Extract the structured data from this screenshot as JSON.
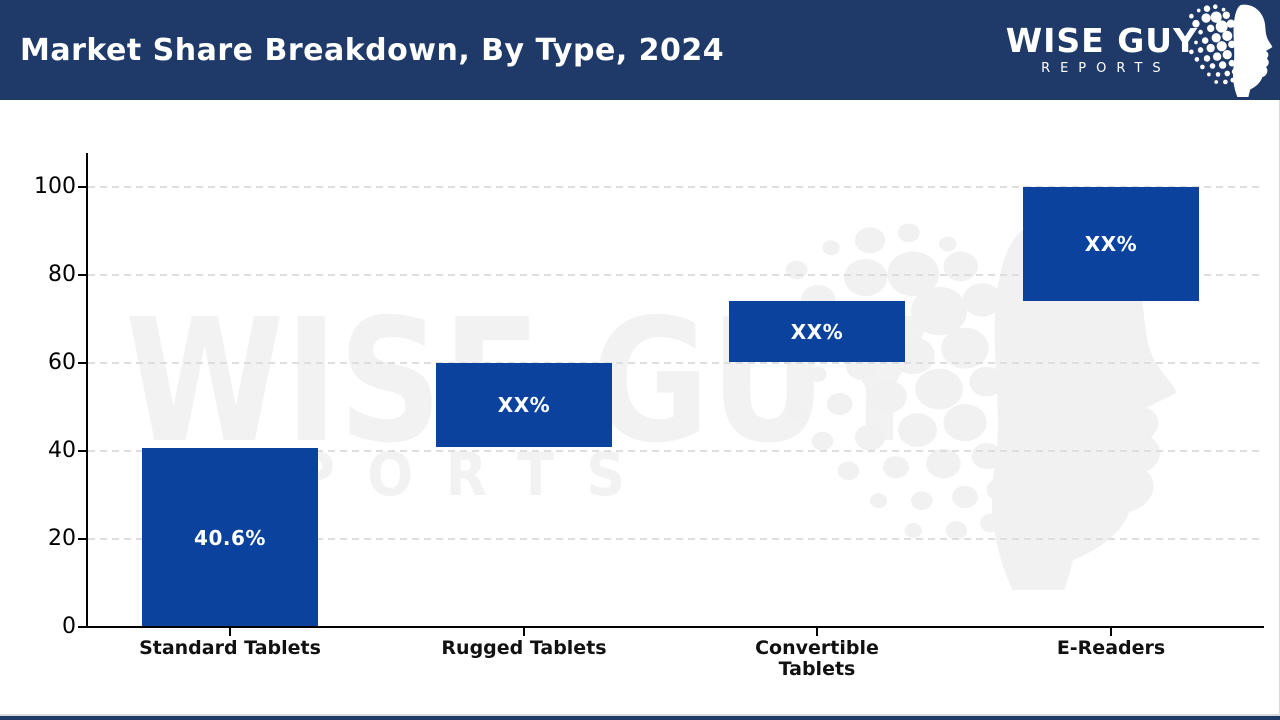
{
  "header": {
    "title": "Market Share Breakdown, By Type, 2024",
    "logo": {
      "line1": "WISE GUY",
      "line2": "REPORTS",
      "face_icon": "dotted-head-profile"
    }
  },
  "watermark": {
    "line1": "WISE GUY",
    "line2": "REPORTS",
    "face_icon": "dotted-head-profile"
  },
  "colors": {
    "header_bg": "#1F3A68",
    "bar": "#0B429E",
    "bar_label": "#FFFFFF",
    "grid": "#DEDEDE",
    "axis": "#000000",
    "watermark": "#F2F2F2"
  },
  "chart_data": {
    "type": "bar",
    "subtype": "floating-waterfall",
    "title": "Market Share Breakdown, By Type, 2024",
    "categories": [
      "Standard Tablets",
      "Rugged Tablets",
      "Convertible\nTablets",
      "E-Readers"
    ],
    "bars": [
      {
        "category": "Standard Tablets",
        "start": 0,
        "end": 40.6,
        "label": "40.6%"
      },
      {
        "category": "Rugged Tablets",
        "start": 40.9,
        "end": 60.0,
        "label": "XX%"
      },
      {
        "category": "Convertible Tablets",
        "start": 60.2,
        "end": 74.1,
        "label": "XX%"
      },
      {
        "category": "E-Readers",
        "start": 74.2,
        "end": 100,
        "label": "XX%"
      }
    ],
    "xlabel": "",
    "ylabel": "",
    "ylim": [
      0,
      100
    ],
    "yticks": [
      0,
      20,
      40,
      60,
      80,
      100
    ],
    "grid": "horizontal-dashed",
    "legend": "none"
  }
}
